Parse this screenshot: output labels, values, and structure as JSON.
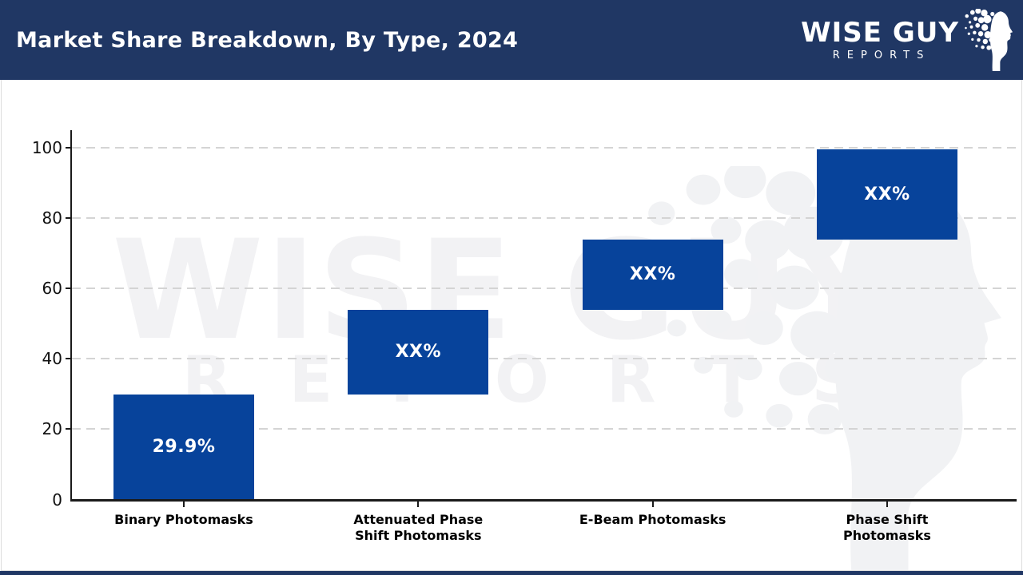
{
  "header": {
    "title": "Market Share Breakdown, By Type, 2024",
    "logo": {
      "name": "WISE GUY",
      "subtitle": "REPORTS"
    }
  },
  "watermark": {
    "name": "WISE GUY",
    "subtitle": "REPORTS"
  },
  "chart_data": {
    "type": "bar",
    "subtype": "floating-segment breakdown (stacked waterfall of market share)",
    "title": "Market Share Breakdown, By Type, 2024",
    "categories": [
      "Binary Photomasks",
      "Attenuated Phase Shift Photomasks",
      "E-Beam Photomasks",
      "Phase Shift Photomasks"
    ],
    "category_lines": [
      [
        "Binary Photomasks"
      ],
      [
        "Attenuated Phase",
        "Shift Photomasks"
      ],
      [
        "E-Beam Photomasks"
      ],
      [
        "Phase Shift",
        "Photomasks"
      ]
    ],
    "bars": [
      {
        "category": "Binary Photomasks",
        "label": "29.9%",
        "from": 0,
        "to": 29.9
      },
      {
        "category": "Attenuated Phase Shift Photomasks",
        "label": "XX%",
        "from": 29.9,
        "to": 54.0
      },
      {
        "category": "E-Beam Photomasks",
        "label": "XX%",
        "from": 54.0,
        "to": 73.8
      },
      {
        "category": "Phase Shift Photomasks",
        "label": "XX%",
        "from": 73.8,
        "to": 99.5
      }
    ],
    "xlabel": "",
    "ylabel": "",
    "ylim": [
      0,
      100
    ],
    "yticks": [
      0,
      20,
      40,
      60,
      80,
      100
    ],
    "grid": "horizontal dashed",
    "legend": null,
    "colors": {
      "bar": "#07439B",
      "header_bar": "#203764",
      "grid": "#D4D4D4",
      "axis": "#1A1A1A",
      "watermark": "#F2F2F4",
      "value_label": "#FFFFFF"
    }
  }
}
